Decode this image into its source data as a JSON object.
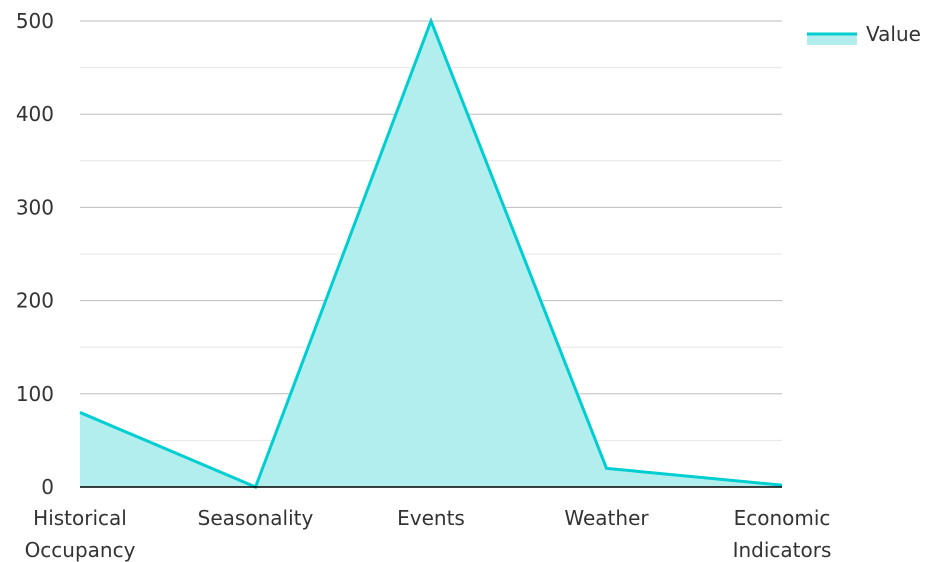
{
  "chart_data": {
    "type": "area",
    "categories": [
      [
        "Historical",
        "Occupancy"
      ],
      [
        "Seasonality"
      ],
      [
        "Events"
      ],
      [
        "Weather"
      ],
      [
        "Economic",
        "Indicators"
      ]
    ],
    "series": [
      {
        "name": "Value",
        "values": [
          80,
          0,
          500,
          20,
          2
        ]
      }
    ],
    "ylim": [
      0,
      500
    ],
    "yticks": [
      0,
      100,
      200,
      300,
      400,
      500
    ],
    "grid": true,
    "legend": "top-right",
    "colors": {
      "line": "#00CED1",
      "fill": "#B2EEEE",
      "major_grid": "#BDBDBD",
      "minor_grid": "#E6E6E6",
      "axis": "#000000"
    }
  }
}
